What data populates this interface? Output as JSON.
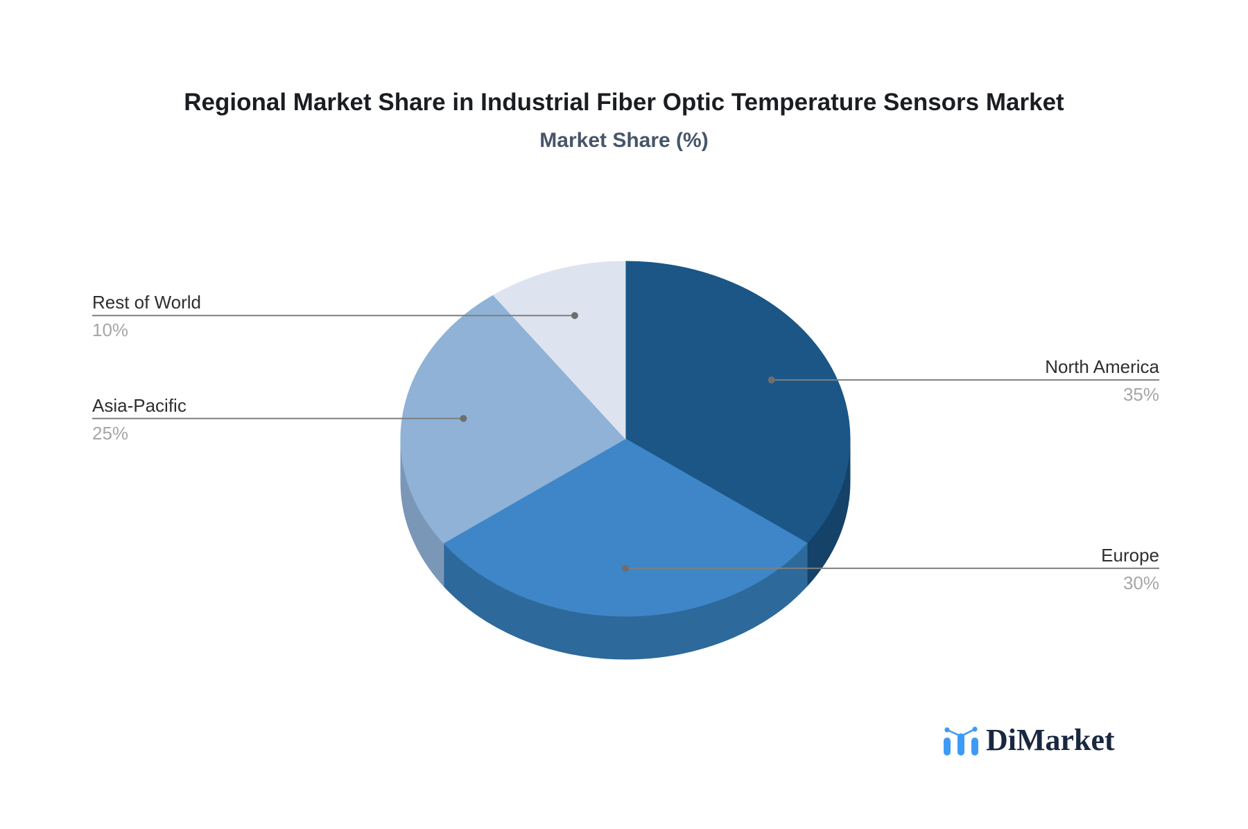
{
  "title": "Regional Market Share in Industrial Fiber Optic Temperature Sensors Market",
  "subtitle": "Market Share (%)",
  "brand": {
    "name": "DiMarket",
    "accent_color": "#3d9bf5",
    "text_color": "#1a2740"
  },
  "chart_data": {
    "type": "pie",
    "style": "3d",
    "title": "Regional Market Share in Industrial Fiber Optic Temperature Sensors Market",
    "subtitle": "Market Share (%)",
    "unit": "%",
    "direction": "clockwise",
    "start_angle_deg": 0,
    "legend_position": "none",
    "slices": [
      {
        "label": "North America",
        "value": 35,
        "color": "#1b5687",
        "side_color": "#144268"
      },
      {
        "label": "Europe",
        "value": 30,
        "color": "#3e86c7",
        "side_color": "#2d699b"
      },
      {
        "label": "Asia-Pacific",
        "value": 25,
        "color": "#8fb2d6",
        "side_color": "#7b97b8"
      },
      {
        "label": "Rest of World",
        "value": 10,
        "color": "#dde4ef",
        "side_color": "#c2ccda"
      }
    ],
    "leader_line_color": "#7f7f7f",
    "leader_dot_color": "#6e6e6e",
    "label_color": "#2e2e2e",
    "value_color": "#a6a6a6"
  }
}
